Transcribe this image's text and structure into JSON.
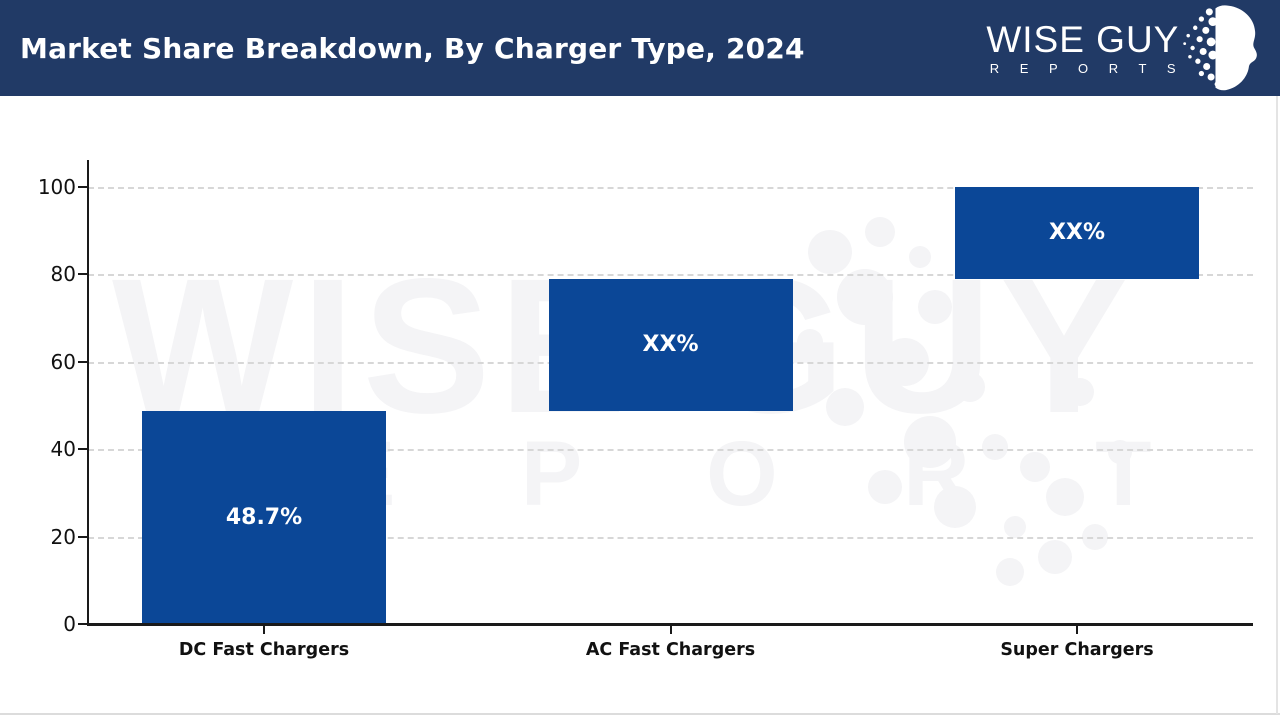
{
  "header": {
    "title": "Market Share Breakdown, By Charger Type, 2024",
    "logo": {
      "name": "Wise Guy Reports",
      "line1": "WISE GUY",
      "line2": "R E P O R T S"
    }
  },
  "watermark": {
    "line1": "WISE GUY",
    "line2": "R E P O R T S"
  },
  "colors": {
    "header_bg": "#213a66",
    "bar_blue": "#0b4797",
    "watermark_gray": "#f4f4f6",
    "title_text": "#ffffff",
    "bar_label_text": "#ffffff",
    "axis_text": "#111111"
  },
  "chart_data": {
    "type": "bar",
    "subtype": "waterfall",
    "title": "Market Share Breakdown, By Charger Type, 2024",
    "categories": [
      "DC Fast Chargers",
      "AC Fast Chargers",
      "Super Chargers"
    ],
    "bars": [
      {
        "category": "DC Fast Chargers",
        "start": 0,
        "end": 48.7,
        "label": "48.7%"
      },
      {
        "category": "AC Fast Chargers",
        "start": 48.7,
        "end": 79,
        "label": "XX%"
      },
      {
        "category": "Super Chargers",
        "start": 79,
        "end": 100,
        "label": "XX%"
      }
    ],
    "yticks": [
      0,
      20,
      40,
      60,
      80,
      100
    ],
    "ylim": [
      0,
      105
    ],
    "xlabel": "",
    "ylabel": "",
    "grid": "horizontal-dashed",
    "legend": "none",
    "bar_color": "#0b4797",
    "bar_label_color": "#ffffff"
  }
}
